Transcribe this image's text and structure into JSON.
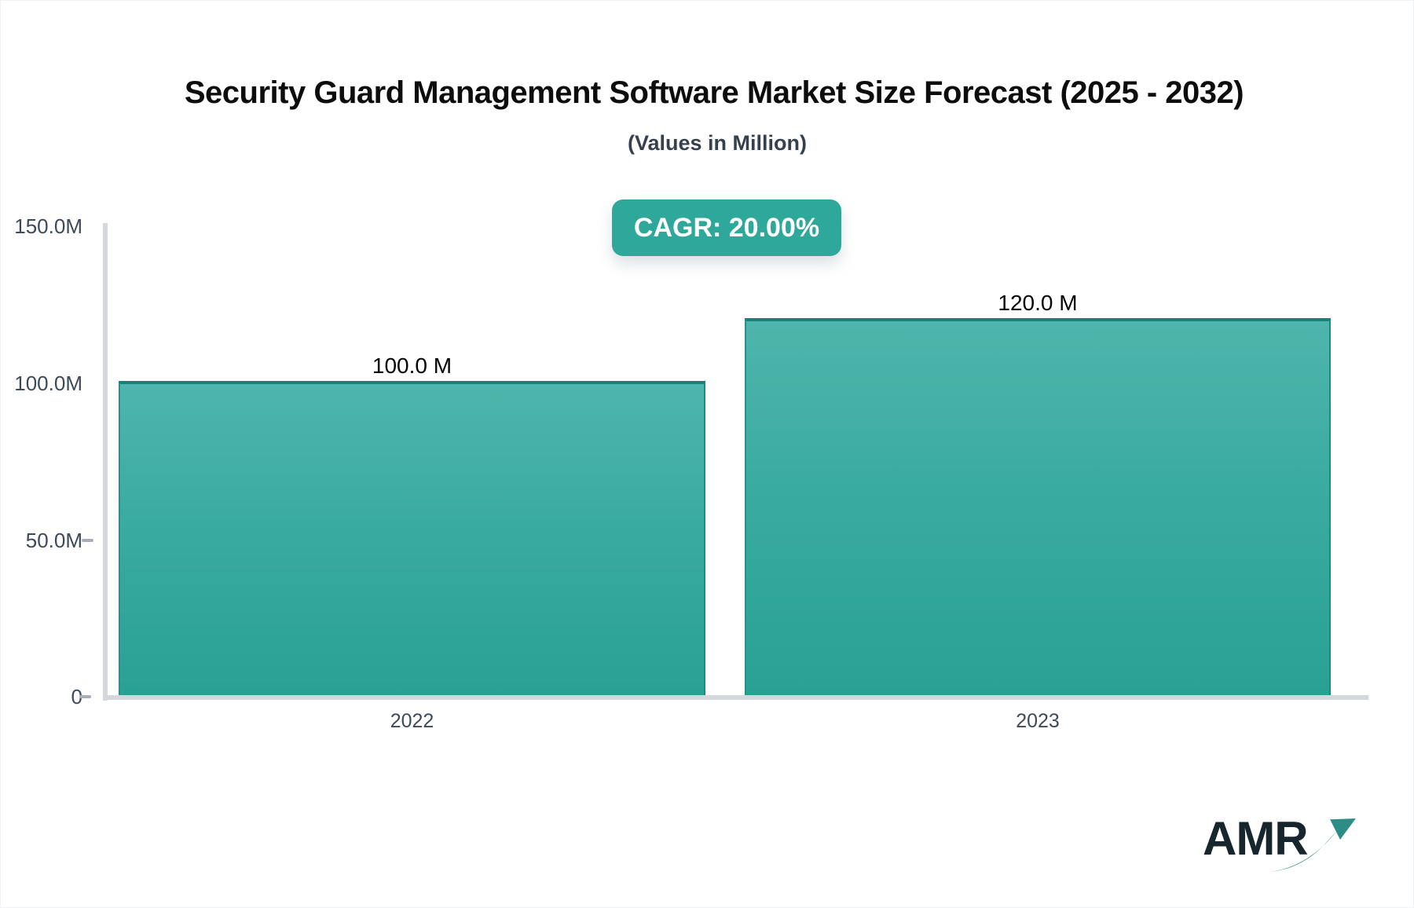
{
  "header": {
    "title": "Security Guard Management Software Market Size Forecast (2025 - 2032)",
    "subtitle": "(Values in Million)",
    "cagr_label": "CAGR: 20.00%"
  },
  "chart_data": {
    "type": "bar",
    "title": "Security Guard Management Software Market Size Forecast (2025 - 2032)",
    "subtitle": "(Values in Million)",
    "values_unit": "Million",
    "cagr_percent": "20.00%",
    "categories": [
      "2022",
      "2023"
    ],
    "values": [
      100.0,
      120.0
    ],
    "bar_value_labels": [
      "100.0 M",
      "120.0 M"
    ],
    "xlabel": "",
    "ylabel": "",
    "ylim": [
      0,
      150
    ],
    "yticks": [
      {
        "label": "150.0M",
        "value": 150
      },
      {
        "label": "100.0M",
        "value": 100
      },
      {
        "label": "50.0M",
        "value": 50
      },
      {
        "label": "0",
        "value": 0
      }
    ],
    "grid": false,
    "legend_position": "none",
    "bar_color_top": "#4fb5ac",
    "bar_color_bottom": "#28a193",
    "bar_border_color": "#15837a"
  },
  "colors": {
    "badge_background": "#2da89b",
    "badge_text": "#ffffff",
    "axis_line": "#d4d8dd",
    "tick_mark": "#a8aeb7",
    "axis_label": "#3e4a59",
    "title_text": "#0d0d0d",
    "subtitle_text": "#36404e",
    "logo_text": "#17262d",
    "logo_arrow": "#2e8c86"
  },
  "branding": {
    "logo_text": "AMR"
  }
}
